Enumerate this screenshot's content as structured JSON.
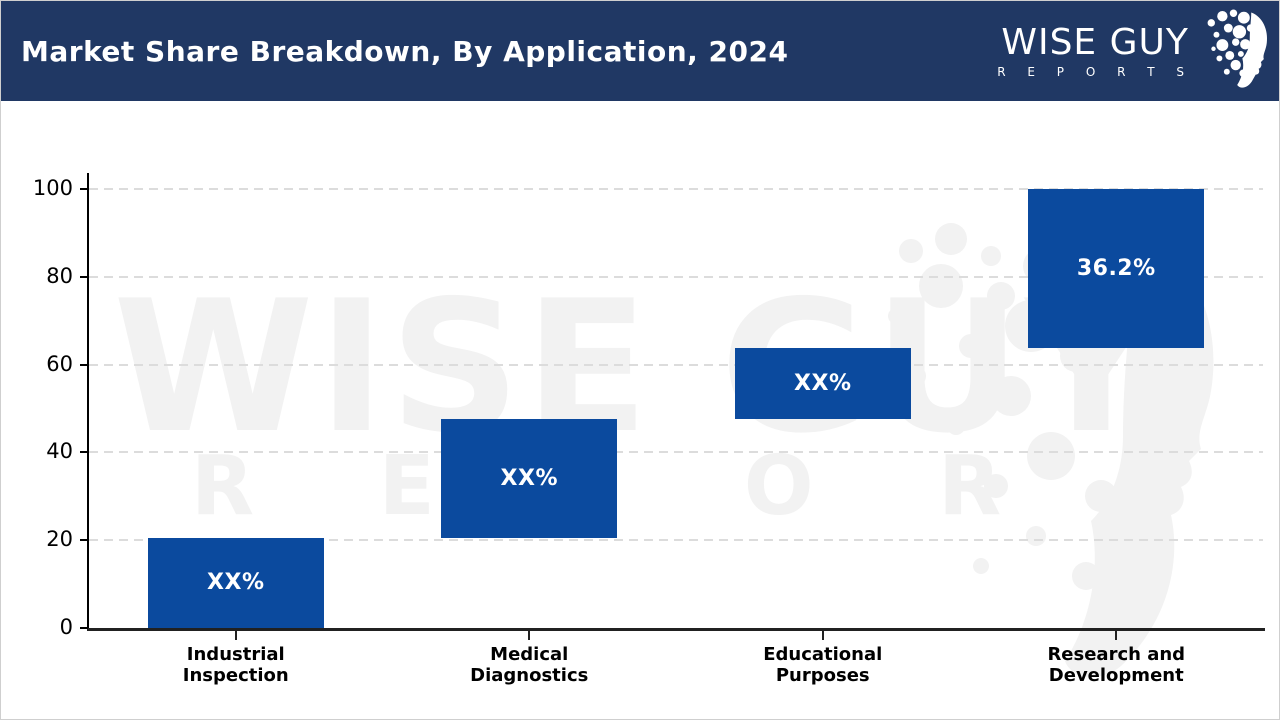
{
  "header": {
    "title": "Market Share Breakdown, By Application, 2024",
    "logo": {
      "wordmark": "WISE GUY",
      "subtext": "R E P O R T S"
    }
  },
  "watermark": {
    "line1": "WISE GUY",
    "line2": "R E P O R T S"
  },
  "colors": {
    "header_navy": "#203864",
    "bar_blue": "#0b4a9e",
    "gridline": "#dcdcdc",
    "watermark_gray": "#f2f2f2",
    "axis_black": "#212121",
    "bar_label_white": "#ffffff"
  },
  "chart_data": {
    "type": "bar",
    "subtype": "floating-segment-waterfall",
    "title": "Market Share Breakdown, By Application, 2024",
    "xlabel": "",
    "ylabel": "",
    "ylim": [
      0,
      103
    ],
    "y_ticks": [
      0,
      20,
      40,
      60,
      80,
      100
    ],
    "grid": "horizontal-dashed",
    "legend": "none",
    "bar_color": "#0b4a9e",
    "categories": [
      "Industrial Inspection",
      "Medical Diagnostics",
      "Educational Purposes",
      "Research and Development"
    ],
    "category_lines": [
      [
        "Industrial",
        "Inspection"
      ],
      [
        "Medical",
        "Diagnostics"
      ],
      [
        "Educational",
        "Purposes"
      ],
      [
        "Research and",
        "Development"
      ]
    ],
    "segments": [
      {
        "category": "Industrial Inspection",
        "start": 0,
        "end": 20.5,
        "value": 20.5,
        "value_label": "XX%"
      },
      {
        "category": "Medical Diagnostics",
        "start": 20.5,
        "end": 47.6,
        "value": 27.1,
        "value_label": "XX%"
      },
      {
        "category": "Educational Purposes",
        "start": 47.6,
        "end": 63.8,
        "value": 16.2,
        "value_label": "XX%"
      },
      {
        "category": "Research and Development",
        "start": 63.8,
        "end": 100,
        "value": 36.2,
        "value_label": "36.2%"
      }
    ]
  }
}
